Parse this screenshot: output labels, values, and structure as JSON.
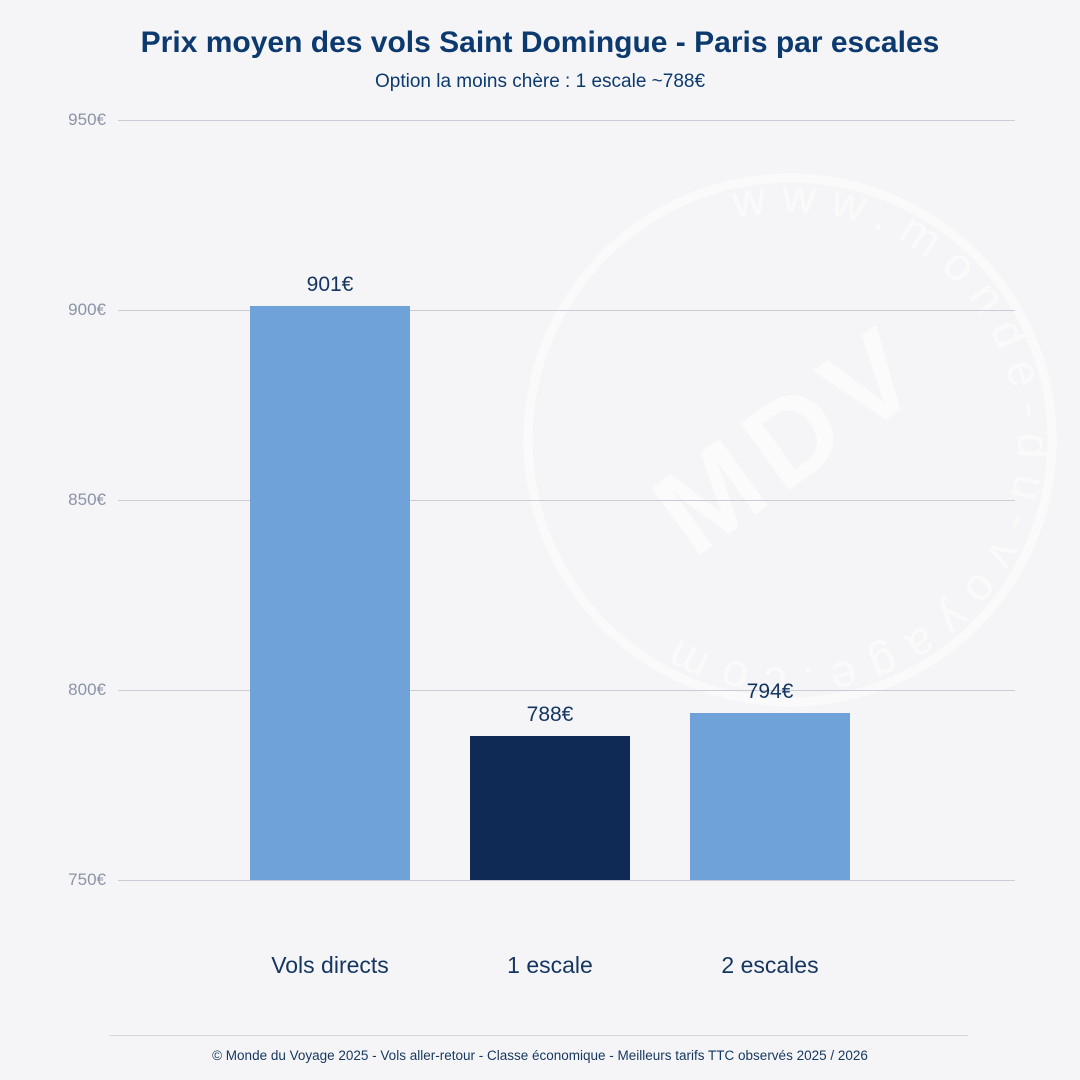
{
  "header": {
    "title": "Prix moyen des vols Saint Domingue - Paris par escales",
    "subtitle": "Option la moins chère : 1 escale ~788€"
  },
  "chart_data": {
    "type": "bar",
    "title": "Prix moyen des vols Saint Domingue - Paris par escales",
    "subtitle": "Option la moins chère : 1 escale ~788€",
    "categories": [
      "Vols directs",
      "1 escale",
      "2 escales"
    ],
    "values": [
      901,
      788,
      794
    ],
    "value_labels": [
      "901€",
      "788€",
      "794€"
    ],
    "ylim": [
      750,
      950
    ],
    "yticks": [
      950,
      900,
      850,
      800,
      750
    ],
    "ytick_labels": [
      "950€",
      "900€",
      "850€",
      "800€",
      "750€"
    ],
    "bar_colors": [
      "#6fa2d9",
      "#0e2a55",
      "#6fa2d9"
    ],
    "grid": true,
    "legend": "none",
    "xlabel": "",
    "ylabel": ""
  },
  "colors": {
    "background": "#f5f5f7",
    "title": "#0c3a6f",
    "bar_light": "#6fa2d9",
    "bar_dark": "#0e2a55",
    "gridline": "#c9cdd8",
    "tick_label": "#8b94a6"
  },
  "watermark": {
    "circle_text": "www.monde-du-voyage.com",
    "initials": "MDV"
  },
  "footer": {
    "text": "© Monde du Voyage 2025 - Vols aller-retour - Classe économique - Meilleurs tarifs TTC observés 2025 / 2026"
  }
}
